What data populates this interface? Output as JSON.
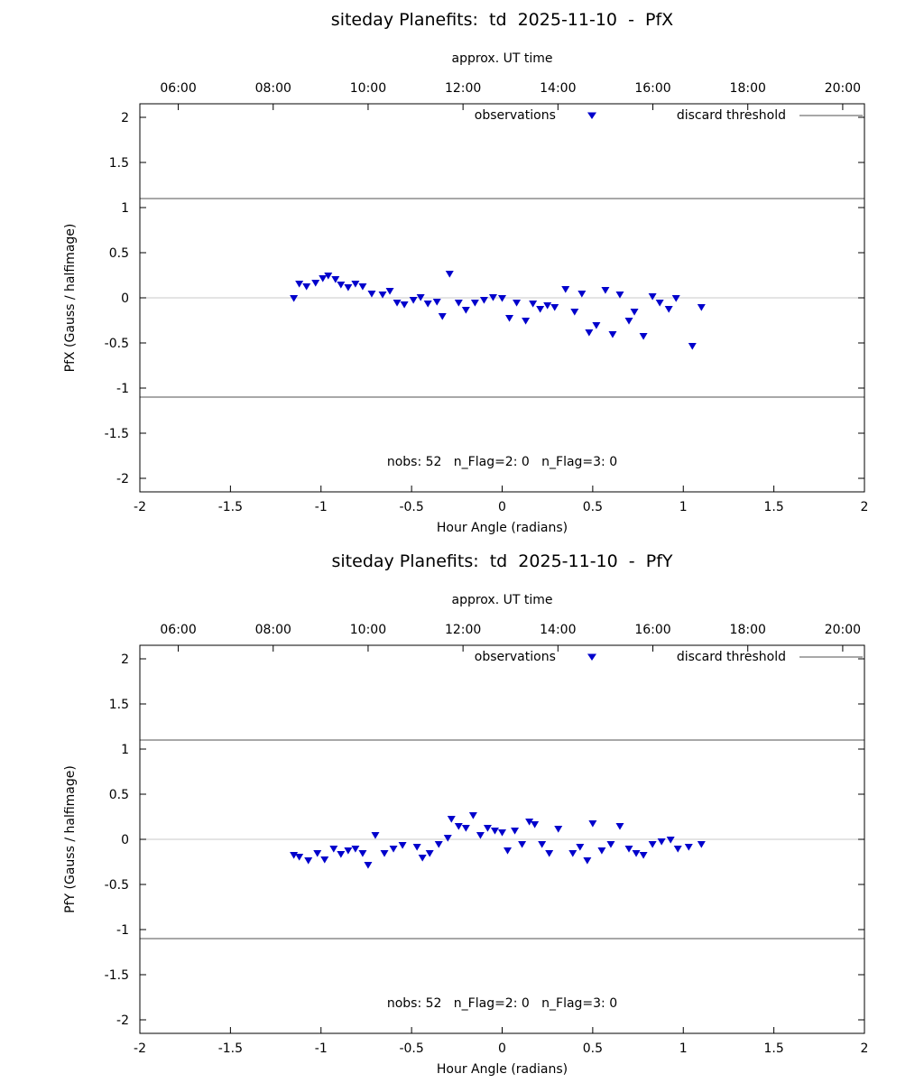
{
  "chart_data": [
    {
      "type": "scatter",
      "title": "siteday Planefits:  td  2025-11-10  -  PfX",
      "x2label": "approx. UT time",
      "xlabel": "Hour Angle (radians)",
      "ylabel": "PfX (Gauss / halfimage)",
      "xlim": [
        -2,
        2
      ],
      "ylim": [
        -2.15,
        2.15
      ],
      "x_ticks": [
        -2,
        -1.5,
        -1,
        -0.5,
        0,
        0.5,
        1,
        1.5,
        2
      ],
      "y_ticks": [
        -2,
        -1.5,
        -1,
        -0.5,
        0,
        0.5,
        1,
        1.5,
        2
      ],
      "x2_ticks": [
        {
          "x": -1.788,
          "label": "06:00"
        },
        {
          "x": -1.264,
          "label": "08:00"
        },
        {
          "x": -0.74,
          "label": "10:00"
        },
        {
          "x": -0.216,
          "label": "12:00"
        },
        {
          "x": 0.308,
          "label": "14:00"
        },
        {
          "x": 0.832,
          "label": "16:00"
        },
        {
          "x": 1.356,
          "label": "18:00"
        },
        {
          "x": 1.88,
          "label": "20:00"
        }
      ],
      "threshold_y": [
        1.1,
        -1.1
      ],
      "zero_line_y": 0,
      "legend": [
        {
          "label": "observations",
          "marker": "triangle-down",
          "color": "#0000cc"
        },
        {
          "label": "discard threshold",
          "marker": "line",
          "color": "#a8a8a8"
        }
      ],
      "stats": "nobs: 52   n_Flag=2: 0   n_Flag=3: 0",
      "nobs": 52,
      "n_flag_2": 0,
      "n_flag_3": 0,
      "colors": {
        "marker": "#0000cc",
        "threshold": "#a8a8a8",
        "zero_line": "#c8c8c8"
      },
      "points": [
        [
          -1.15,
          0.0
        ],
        [
          -1.12,
          0.16
        ],
        [
          -1.08,
          0.13
        ],
        [
          -1.03,
          0.17
        ],
        [
          -0.99,
          0.22
        ],
        [
          -0.96,
          0.25
        ],
        [
          -0.92,
          0.21
        ],
        [
          -0.89,
          0.15
        ],
        [
          -0.85,
          0.12
        ],
        [
          -0.81,
          0.16
        ],
        [
          -0.77,
          0.13
        ],
        [
          -0.72,
          0.05
        ],
        [
          -0.66,
          0.04
        ],
        [
          -0.62,
          0.08
        ],
        [
          -0.58,
          -0.05
        ],
        [
          -0.54,
          -0.07
        ],
        [
          -0.49,
          -0.02
        ],
        [
          -0.45,
          0.01
        ],
        [
          -0.41,
          -0.06
        ],
        [
          -0.36,
          -0.04
        ],
        [
          -0.33,
          -0.2
        ],
        [
          -0.29,
          0.27
        ],
        [
          -0.24,
          -0.05
        ],
        [
          -0.2,
          -0.13
        ],
        [
          -0.15,
          -0.05
        ],
        [
          -0.1,
          -0.02
        ],
        [
          -0.05,
          0.01
        ],
        [
          0.0,
          0.0
        ],
        [
          0.04,
          -0.22
        ],
        [
          0.08,
          -0.05
        ],
        [
          0.13,
          -0.25
        ],
        [
          0.17,
          -0.06
        ],
        [
          0.21,
          -0.12
        ],
        [
          0.25,
          -0.08
        ],
        [
          0.29,
          -0.1
        ],
        [
          0.35,
          0.1
        ],
        [
          0.4,
          -0.15
        ],
        [
          0.44,
          0.05
        ],
        [
          0.48,
          -0.38
        ],
        [
          0.52,
          -0.3
        ],
        [
          0.57,
          0.09
        ],
        [
          0.61,
          -0.4
        ],
        [
          0.65,
          0.04
        ],
        [
          0.7,
          -0.25
        ],
        [
          0.73,
          -0.15
        ],
        [
          0.78,
          -0.42
        ],
        [
          0.83,
          0.02
        ],
        [
          0.87,
          -0.05
        ],
        [
          0.92,
          -0.12
        ],
        [
          0.96,
          0.0
        ],
        [
          1.05,
          -0.53
        ],
        [
          1.1,
          -0.1
        ]
      ]
    },
    {
      "type": "scatter",
      "title": "siteday Planefits:  td  2025-11-10  -  PfY",
      "x2label": "approx. UT time",
      "xlabel": "Hour Angle (radians)",
      "ylabel": "PfY (Gauss / halfimage)",
      "xlim": [
        -2,
        2
      ],
      "ylim": [
        -2.15,
        2.15
      ],
      "x_ticks": [
        -2,
        -1.5,
        -1,
        -0.5,
        0,
        0.5,
        1,
        1.5,
        2
      ],
      "y_ticks": [
        -2,
        -1.5,
        -1,
        -0.5,
        0,
        0.5,
        1,
        1.5,
        2
      ],
      "x2_ticks": [
        {
          "x": -1.788,
          "label": "06:00"
        },
        {
          "x": -1.264,
          "label": "08:00"
        },
        {
          "x": -0.74,
          "label": "10:00"
        },
        {
          "x": -0.216,
          "label": "12:00"
        },
        {
          "x": 0.308,
          "label": "14:00"
        },
        {
          "x": 0.832,
          "label": "16:00"
        },
        {
          "x": 1.356,
          "label": "18:00"
        },
        {
          "x": 1.88,
          "label": "20:00"
        }
      ],
      "threshold_y": [
        1.1,
        -1.1
      ],
      "zero_line_y": 0,
      "legend": [
        {
          "label": "observations",
          "marker": "triangle-down",
          "color": "#0000cc"
        },
        {
          "label": "discard threshold",
          "marker": "line",
          "color": "#a8a8a8"
        }
      ],
      "stats": "nobs: 52   n_Flag=2: 0   n_Flag=3: 0",
      "nobs": 52,
      "n_flag_2": 0,
      "n_flag_3": 0,
      "colors": {
        "marker": "#0000cc",
        "threshold": "#a8a8a8",
        "zero_line": "#c8c8c8"
      },
      "points": [
        [
          -1.15,
          -0.17
        ],
        [
          -1.12,
          -0.19
        ],
        [
          -1.07,
          -0.23
        ],
        [
          -1.02,
          -0.15
        ],
        [
          -0.98,
          -0.22
        ],
        [
          -0.93,
          -0.1
        ],
        [
          -0.89,
          -0.16
        ],
        [
          -0.85,
          -0.12
        ],
        [
          -0.81,
          -0.1
        ],
        [
          -0.77,
          -0.15
        ],
        [
          -0.74,
          -0.28
        ],
        [
          -0.7,
          0.05
        ],
        [
          -0.65,
          -0.15
        ],
        [
          -0.6,
          -0.1
        ],
        [
          -0.55,
          -0.06
        ],
        [
          -0.47,
          -0.08
        ],
        [
          -0.44,
          -0.2
        ],
        [
          -0.4,
          -0.15
        ],
        [
          -0.35,
          -0.05
        ],
        [
          -0.3,
          0.02
        ],
        [
          -0.28,
          0.23
        ],
        [
          -0.24,
          0.15
        ],
        [
          -0.2,
          0.13
        ],
        [
          -0.16,
          0.27
        ],
        [
          -0.12,
          0.05
        ],
        [
          -0.08,
          0.13
        ],
        [
          -0.04,
          0.1
        ],
        [
          0.0,
          0.08
        ],
        [
          0.03,
          -0.12
        ],
        [
          0.07,
          0.1
        ],
        [
          0.11,
          -0.05
        ],
        [
          0.15,
          0.2
        ],
        [
          0.18,
          0.17
        ],
        [
          0.22,
          -0.05
        ],
        [
          0.26,
          -0.15
        ],
        [
          0.31,
          0.12
        ],
        [
          0.39,
          -0.15
        ],
        [
          0.43,
          -0.08
        ],
        [
          0.47,
          -0.23
        ],
        [
          0.5,
          0.18
        ],
        [
          0.55,
          -0.12
        ],
        [
          0.6,
          -0.05
        ],
        [
          0.65,
          0.15
        ],
        [
          0.7,
          -0.1
        ],
        [
          0.74,
          -0.15
        ],
        [
          0.78,
          -0.17
        ],
        [
          0.83,
          -0.05
        ],
        [
          0.88,
          -0.02
        ],
        [
          0.93,
          0.0
        ],
        [
          0.97,
          -0.1
        ],
        [
          1.03,
          -0.08
        ],
        [
          1.1,
          -0.05
        ]
      ]
    }
  ]
}
